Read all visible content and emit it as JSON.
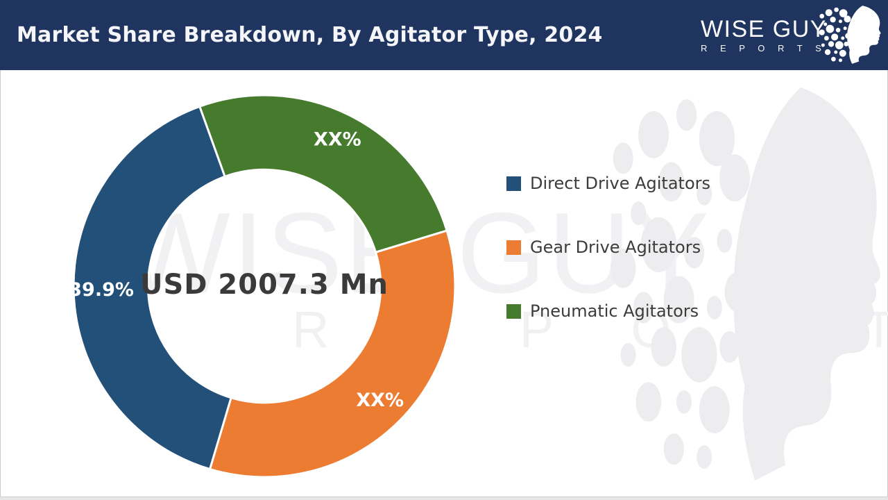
{
  "header": {
    "title": "Market Share Breakdown, By Agitator Type, 2024",
    "bg_color": "#1f345e",
    "logo": {
      "line1": "WISE GUY",
      "line2": "R E P O R T S"
    }
  },
  "watermark": {
    "line1": "WISE GUY",
    "line2": "R E P O R T S"
  },
  "chart_data": {
    "type": "pie",
    "subtype": "donut",
    "title": "Market Share Breakdown, By Agitator Type, 2024",
    "center_label": "USD 2007.3 Mn",
    "start_angle_deg": 109.8,
    "direction": "counterclockwise",
    "inner_radius_ratio": 0.61,
    "legend_position": "right",
    "slices": [
      {
        "name": "Direct Drive Agitators",
        "value_pct": 39.9,
        "label": "39.9%",
        "color": "#225079"
      },
      {
        "name": "Gear Drive Agitators",
        "value_pct": 34.3,
        "label": "XX%",
        "color": "#ed7c33"
      },
      {
        "name": "Pneumatic Agitators",
        "value_pct": 25.8,
        "label": "XX%",
        "color": "#467a2c"
      }
    ]
  },
  "legend": {
    "items": [
      {
        "label": "Direct Drive Agitators",
        "color": "#225079"
      },
      {
        "label": "Gear Drive Agitators",
        "color": "#ed7c33"
      },
      {
        "label": "Pneumatic Agitators",
        "color": "#467a2c"
      }
    ]
  }
}
